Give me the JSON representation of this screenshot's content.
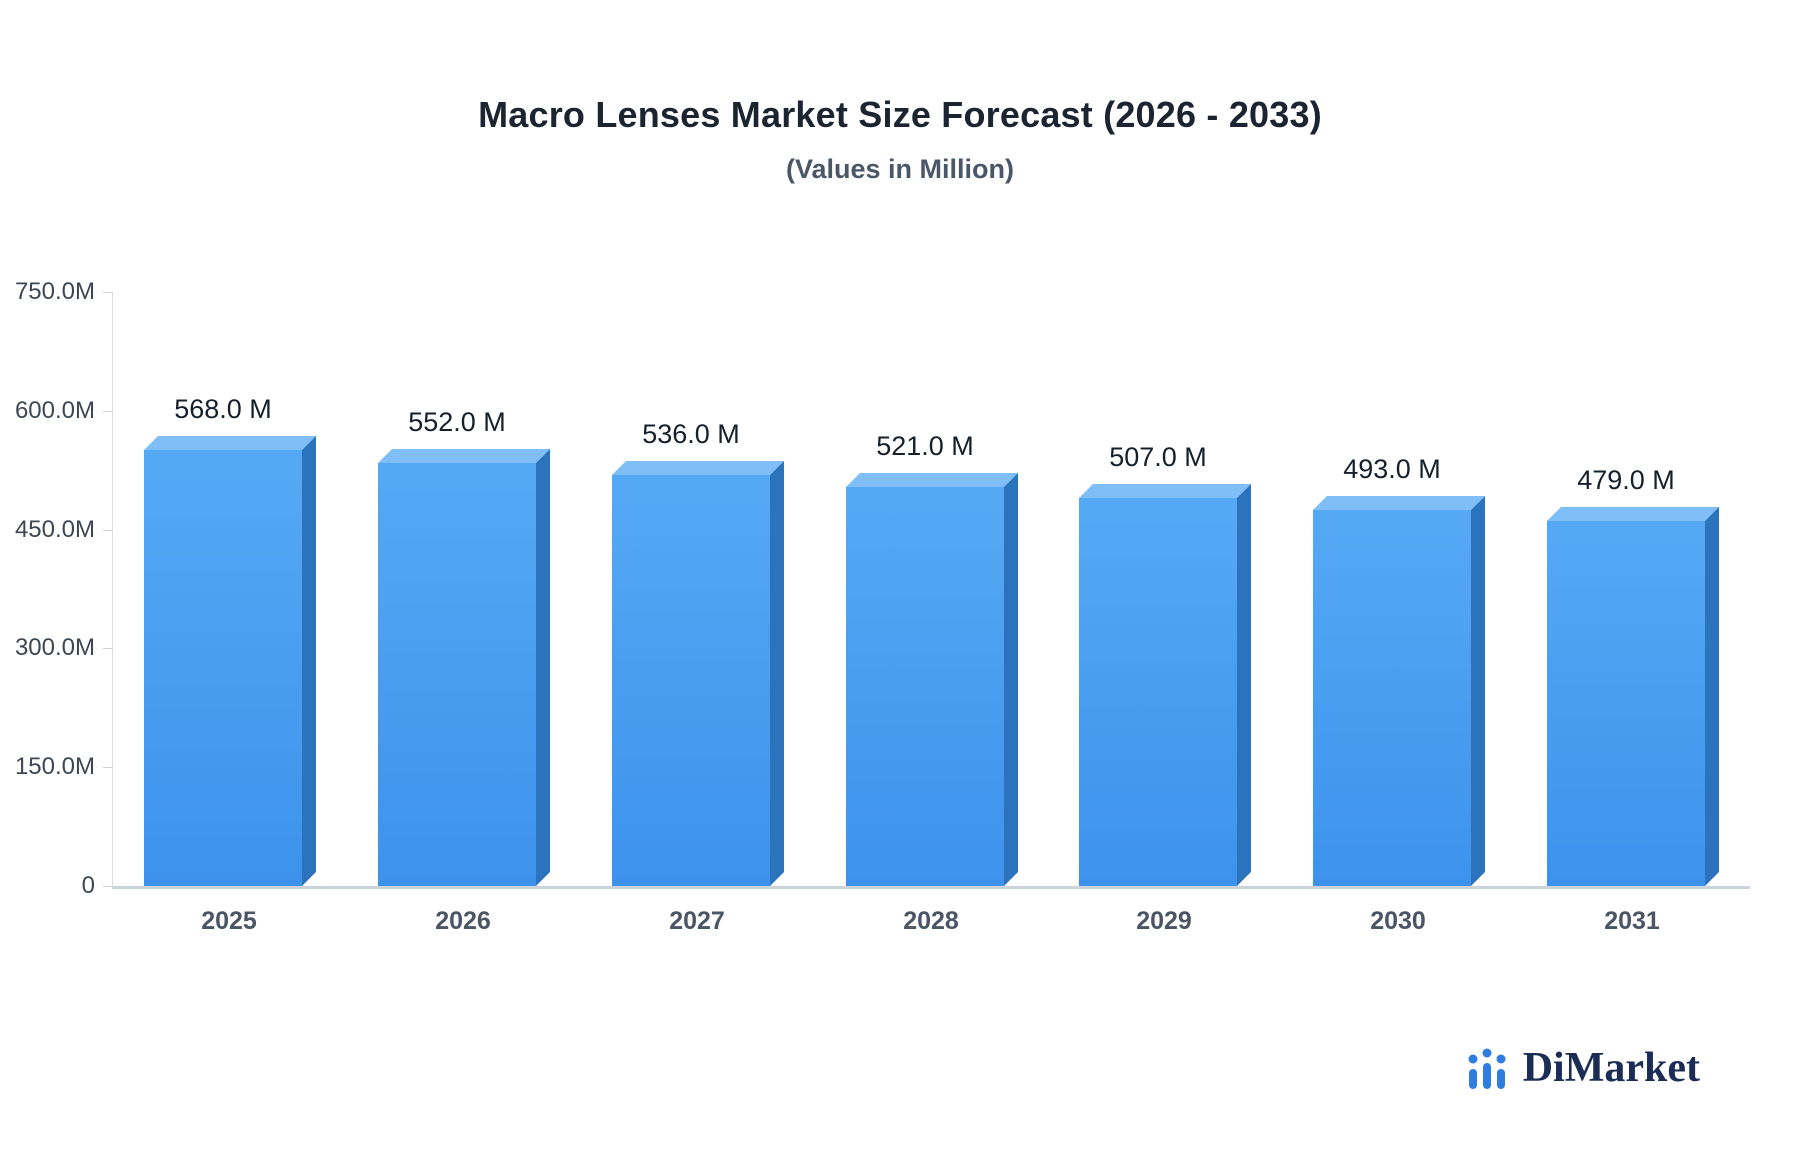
{
  "title": "Macro Lenses Market Size Forecast (2026 - 2033)",
  "subtitle": "(Values in Million)",
  "chart_data": {
    "type": "bar",
    "categories": [
      "2025",
      "2026",
      "2027",
      "2028",
      "2029",
      "2030",
      "2031"
    ],
    "values": [
      568.0,
      552.0,
      536.0,
      521.0,
      507.0,
      493.0,
      479.0
    ],
    "bar_labels": [
      "568.0 M",
      "552.0 M",
      "536.0 M",
      "521.0 M",
      "507.0 M",
      "493.0 M",
      "479.0 M"
    ],
    "title": "Macro Lenses Market Size Forecast (2026 - 2033)",
    "subtitle": "(Values in Million)",
    "xlabel": "",
    "ylabel": "",
    "ylim": [
      0,
      750
    ],
    "y_ticks": [
      {
        "value": 0,
        "label": "0"
      },
      {
        "value": 150,
        "label": "150.0M"
      },
      {
        "value": 300,
        "label": "300.0M"
      },
      {
        "value": 450,
        "label": "450.0M"
      },
      {
        "value": 600,
        "label": "600.0M"
      },
      {
        "value": 750,
        "label": "750.0M"
      }
    ],
    "grid": false,
    "legend": null,
    "colors": {
      "bar_front_top": "#55A9F4",
      "bar_front_bottom": "#3D92EC",
      "bar_side": "#2B74BD",
      "bar_top": "#7FBEF7",
      "axis": "#CBD2D9"
    }
  },
  "logo": {
    "text": "DiMarket",
    "icon": "dimarket-bars-icon",
    "text_color": "#1C2D55",
    "icon_color": "#2F7DE1"
  }
}
